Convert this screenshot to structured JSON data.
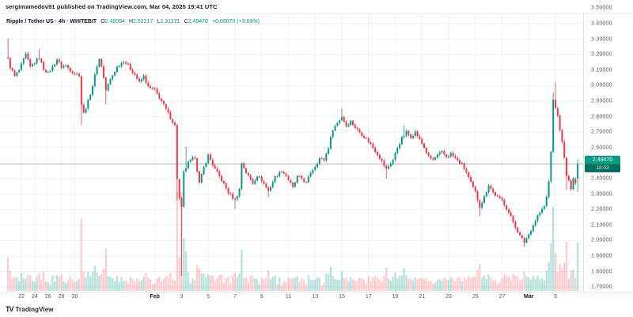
{
  "header": {
    "published_line": "sergimamedov91 published on TradingView.com, Mar 04, 2025 19:41 UTC"
  },
  "legend": {
    "symbol_title": "Ripple / Tether US · 4h · WHITEBIT",
    "ohlc": {
      "open_label": "O",
      "open": "2.40064",
      "high_label": "H",
      "high": "2.52217",
      "low_label": "L",
      "low": "2.31271",
      "close_label": "C",
      "close": "2.49470",
      "change": "+0.08870 (+3.69%)"
    }
  },
  "price_axis": {
    "labels": [
      "3.50000",
      "3.40000",
      "3.30000",
      "3.20000",
      "3.10000",
      "3.00000",
      "2.90000",
      "2.80000",
      "2.70000",
      "2.60000",
      "2.50000",
      "2.40000",
      "2.30000",
      "2.20000",
      "2.10000",
      "2.00000",
      "1.90000",
      "1.80000",
      "1.70000"
    ],
    "last_price_label": "2.49470",
    "countdown": "18:03"
  },
  "time_axis": {
    "ticks": [
      {
        "t": "22",
        "i": 6,
        "bold": false
      },
      {
        "t": "24",
        "i": 12,
        "bold": false
      },
      {
        "t": "26",
        "i": 18,
        "bold": false
      },
      {
        "t": "28",
        "i": 24,
        "bold": false
      },
      {
        "t": "30",
        "i": 30,
        "bold": false
      },
      {
        "t": "Feb",
        "i": 66,
        "bold": true
      },
      {
        "t": "3",
        "i": 78,
        "bold": false
      },
      {
        "t": "5",
        "i": 90,
        "bold": false
      },
      {
        "t": "7",
        "i": 102,
        "bold": false
      },
      {
        "t": "9",
        "i": 114,
        "bold": false
      },
      {
        "t": "11",
        "i": 126,
        "bold": false
      },
      {
        "t": "13",
        "i": 138,
        "bold": false
      },
      {
        "t": "15",
        "i": 150,
        "bold": false
      },
      {
        "t": "17",
        "i": 162,
        "bold": false
      },
      {
        "t": "19",
        "i": 174,
        "bold": false
      },
      {
        "t": "21",
        "i": 186,
        "bold": false
      },
      {
        "t": "23",
        "i": 198,
        "bold": false
      },
      {
        "t": "25",
        "i": 210,
        "bold": false
      },
      {
        "t": "27",
        "i": 222,
        "bold": false
      },
      {
        "t": "Mar",
        "i": 234,
        "bold": true
      },
      {
        "t": "3",
        "i": 246,
        "bold": false
      }
    ]
  },
  "footer": {
    "logo_text": "TradingView",
    "mark_text": "TV"
  },
  "colors": {
    "up": "#089981",
    "down": "#f23645",
    "up_volume": "rgba(8,153,129,0.28)",
    "down_volume": "rgba(242,54,69,0.24)",
    "grid": "#f0f2f5",
    "axis_line": "#e0e3eb",
    "price_line": "#b6b9c1",
    "label_bg": "#089981",
    "countdown_bg": "#066e5e",
    "axis_text": "#55585f",
    "legend_text": "#131722"
  },
  "chart_data": {
    "type": "candlestick",
    "title": "Ripple / Tether US",
    "exchange": "WHITEBIT",
    "interval": "4h",
    "bars_start": "2025-01-21 00:00 UTC",
    "bars_end": "2025-03-04 16:00 UTC",
    "bar_count": 257,
    "price_axis_range": [
      1.7,
      3.5
    ],
    "grid_step": 0.1,
    "grid": true,
    "last_price": 2.4947,
    "current_bar": {
      "open": 2.40064,
      "high": 2.52217,
      "low": 2.31271,
      "close": 2.4947,
      "change_abs": 0.0887,
      "change_pct": 3.69
    },
    "anchors": [
      [
        0,
        3.17
      ],
      [
        1,
        3.12
      ],
      [
        3,
        3.06
      ],
      [
        5,
        3.1
      ],
      [
        8,
        3.2
      ],
      [
        10,
        3.12
      ],
      [
        12,
        3.15
      ],
      [
        14,
        3.18
      ],
      [
        16,
        3.11
      ],
      [
        18,
        3.08
      ],
      [
        20,
        3.12
      ],
      [
        22,
        3.17
      ],
      [
        24,
        3.12
      ],
      [
        26,
        3.13
      ],
      [
        28,
        3.1
      ],
      [
        30,
        3.08
      ],
      [
        32,
        3.07
      ],
      [
        33,
        2.88
      ],
      [
        34,
        2.82
      ],
      [
        36,
        2.9
      ],
      [
        38,
        3.0
      ],
      [
        40,
        3.13
      ],
      [
        41,
        3.17
      ],
      [
        42,
        3.13
      ],
      [
        44,
        2.97
      ],
      [
        46,
        3.04
      ],
      [
        49,
        3.12
      ],
      [
        52,
        3.16
      ],
      [
        54,
        3.13
      ],
      [
        57,
        3.07
      ],
      [
        59,
        3.02
      ],
      [
        61,
        3.06
      ],
      [
        63,
        2.99
      ],
      [
        66,
        2.97
      ],
      [
        69,
        2.9
      ],
      [
        72,
        2.82
      ],
      [
        75,
        2.74
      ],
      [
        76,
        2.4
      ],
      [
        77,
        2.27
      ],
      [
        78,
        2.21
      ],
      [
        79,
        2.44
      ],
      [
        81,
        2.5
      ],
      [
        84,
        2.54
      ],
      [
        86,
        2.37
      ],
      [
        88,
        2.47
      ],
      [
        90,
        2.55
      ],
      [
        93,
        2.46
      ],
      [
        96,
        2.39
      ],
      [
        99,
        2.31
      ],
      [
        102,
        2.26
      ],
      [
        104,
        2.33
      ],
      [
        105,
        2.5
      ],
      [
        107,
        2.44
      ],
      [
        110,
        2.37
      ],
      [
        112,
        2.42
      ],
      [
        114,
        2.39
      ],
      [
        117,
        2.32
      ],
      [
        120,
        2.41
      ],
      [
        123,
        2.45
      ],
      [
        125,
        2.42
      ],
      [
        128,
        2.34
      ],
      [
        130,
        2.41
      ],
      [
        132,
        2.4
      ],
      [
        134,
        2.37
      ],
      [
        136,
        2.44
      ],
      [
        138,
        2.48
      ],
      [
        140,
        2.53
      ],
      [
        142,
        2.52
      ],
      [
        144,
        2.6
      ],
      [
        146,
        2.72
      ],
      [
        148,
        2.76
      ],
      [
        150,
        2.8
      ],
      [
        152,
        2.74
      ],
      [
        154,
        2.77
      ],
      [
        156,
        2.73
      ],
      [
        158,
        2.7
      ],
      [
        160,
        2.67
      ],
      [
        162,
        2.64
      ],
      [
        164,
        2.6
      ],
      [
        166,
        2.56
      ],
      [
        168,
        2.51
      ],
      [
        170,
        2.46
      ],
      [
        173,
        2.52
      ],
      [
        175,
        2.6
      ],
      [
        177,
        2.66
      ],
      [
        179,
        2.7
      ],
      [
        181,
        2.67
      ],
      [
        183,
        2.7
      ],
      [
        185,
        2.65
      ],
      [
        187,
        2.6
      ],
      [
        189,
        2.54
      ],
      [
        191,
        2.52
      ],
      [
        193,
        2.55
      ],
      [
        195,
        2.57
      ],
      [
        197,
        2.54
      ],
      [
        199,
        2.56
      ],
      [
        201,
        2.53
      ],
      [
        203,
        2.5
      ],
      [
        204,
        2.49
      ],
      [
        206,
        2.44
      ],
      [
        208,
        2.37
      ],
      [
        210,
        2.31
      ],
      [
        212,
        2.22
      ],
      [
        214,
        2.28
      ],
      [
        216,
        2.36
      ],
      [
        218,
        2.31
      ],
      [
        220,
        2.28
      ],
      [
        222,
        2.26
      ],
      [
        224,
        2.21
      ],
      [
        226,
        2.15
      ],
      [
        228,
        2.09
      ],
      [
        230,
        2.03
      ],
      [
        232,
        1.99
      ],
      [
        234,
        2.04
      ],
      [
        236,
        2.1
      ],
      [
        238,
        2.16
      ],
      [
        240,
        2.2
      ],
      [
        241,
        2.22
      ],
      [
        242,
        2.28
      ],
      [
        243,
        2.38
      ],
      [
        244,
        2.58
      ],
      [
        245,
        2.9
      ],
      [
        246,
        2.86
      ],
      [
        247,
        2.8
      ],
      [
        248,
        2.72
      ],
      [
        249,
        2.63
      ],
      [
        250,
        2.53
      ],
      [
        251,
        2.42
      ],
      [
        252,
        2.38
      ],
      [
        253,
        2.34
      ],
      [
        254,
        2.41
      ],
      [
        255,
        2.37
      ],
      [
        256,
        2.4947
      ]
    ],
    "wick_overrides": {
      "0": {
        "high": 3.305
      },
      "14": {
        "high": 3.232
      },
      "33": {
        "low": 2.745
      },
      "44": {
        "low": 2.878
      },
      "76": {
        "low": 2.26
      },
      "78": {
        "low": 1.772
      },
      "80": {
        "high": 2.605
      },
      "102": {
        "low": 2.205
      },
      "117": {
        "low": 2.28
      },
      "150": {
        "high": 2.853
      },
      "170": {
        "low": 2.398
      },
      "178": {
        "high": 2.742
      },
      "212": {
        "low": 2.158
      },
      "232": {
        "low": 1.958
      },
      "245": {
        "high": 2.955
      },
      "246": {
        "high": 3.021
      },
      "251": {
        "low": 2.328
      },
      "256": {
        "open": 2.40064,
        "high": 2.52217,
        "low": 2.31271,
        "close": 2.4947
      }
    }
  }
}
